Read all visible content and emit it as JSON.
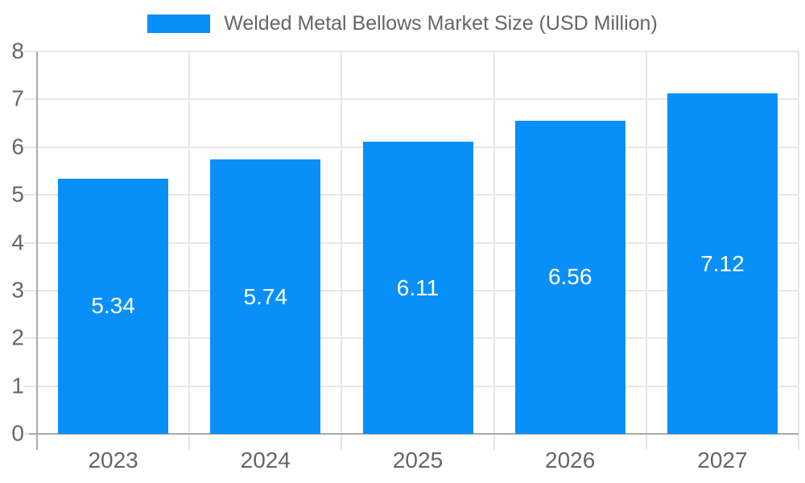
{
  "chart_data": {
    "type": "bar",
    "title": "Welded Metal Bellows Market Size (USD Million)",
    "legend": {
      "position": "top",
      "label": "Welded Metal Bellows Market Size (USD Million)"
    },
    "categories": [
      "2023",
      "2024",
      "2025",
      "2026",
      "2027"
    ],
    "series": [
      {
        "name": "Welded Metal Bellows Market Size (USD Million)",
        "values": [
          5.34,
          5.74,
          6.11,
          6.56,
          7.12
        ]
      }
    ],
    "value_labels": [
      "5.34",
      "5.74",
      "6.11",
      "6.56",
      "7.12"
    ],
    "xlabel": "",
    "ylabel": "",
    "ylim": [
      0,
      8
    ],
    "yticks": [
      0,
      1,
      2,
      3,
      4,
      5,
      6,
      7,
      8
    ],
    "grid": true,
    "colors": {
      "bar": "#0990f8",
      "value_label": "#ffffff",
      "gridline": "#e7e7e7",
      "axis_line": "#aaaaaa",
      "tick_text": "#666666",
      "legend_text": "#666666",
      "background": "#ffffff"
    }
  }
}
